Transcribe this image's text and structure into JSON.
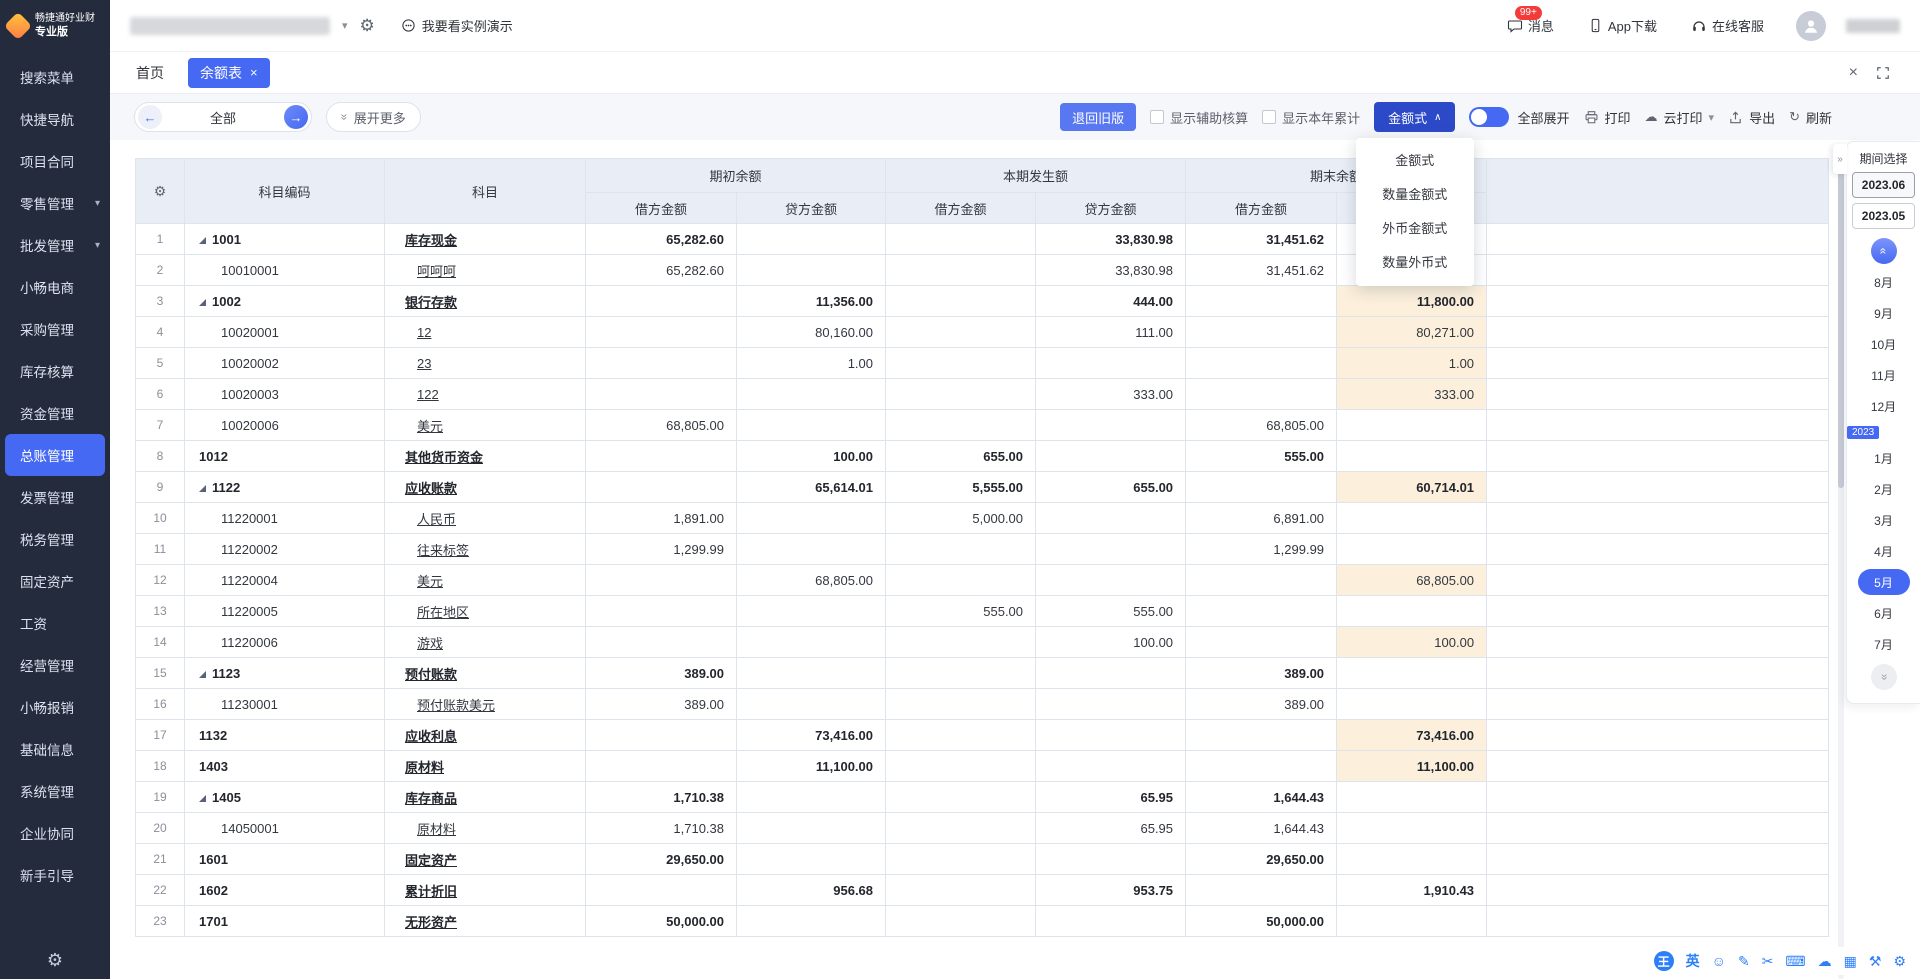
{
  "brand": {
    "line1": "畅捷通好业财",
    "line2": "专业版"
  },
  "topbar": {
    "demo_label": "我要看实例演示",
    "messages": "消息",
    "messages_badge": "99+",
    "app_download": "App下载",
    "support": "在线客服"
  },
  "sidebar": {
    "items": [
      {
        "label": "搜索菜单"
      },
      {
        "label": "快捷导航"
      },
      {
        "label": "项目合同"
      },
      {
        "label": "零售管理",
        "caret": true
      },
      {
        "label": "批发管理",
        "caret": true
      },
      {
        "label": "小畅电商"
      },
      {
        "label": "采购管理"
      },
      {
        "label": "库存核算"
      },
      {
        "label": "资金管理"
      },
      {
        "label": "总账管理",
        "active": true
      },
      {
        "label": "发票管理"
      },
      {
        "label": "税务管理"
      },
      {
        "label": "固定资产"
      },
      {
        "label": "工资"
      },
      {
        "label": "经营管理"
      },
      {
        "label": "小畅报销"
      },
      {
        "label": "基础信息"
      },
      {
        "label": "系统管理"
      },
      {
        "label": "企业协同"
      },
      {
        "label": "新手引导"
      }
    ]
  },
  "tabs": {
    "home": "首页",
    "active": "余额表"
  },
  "toolbar": {
    "scope": "全部",
    "expand_more": "展开更多",
    "back_old": "退回旧版",
    "chk_aux": "显示辅助核算",
    "chk_ytd": "显示本年累计",
    "format": "金额式",
    "expand_all": "全部展开",
    "print": "打印",
    "cloud_print": "云打印",
    "export": "导出",
    "refresh": "刷新"
  },
  "format_menu": {
    "options": [
      "金额式",
      "数量金额式",
      "外币金额式",
      "数量外币式"
    ]
  },
  "table": {
    "col_code": "科目编码",
    "col_subject": "科目",
    "groups": [
      "期初余额",
      "本期发生额",
      "期末余额"
    ],
    "sub_debit": "借方金额",
    "sub_credit": "贷方金额",
    "rows": [
      {
        "seq": 1,
        "code": "1001",
        "name": "库存现金",
        "level": 1,
        "expand": true,
        "bold": true,
        "cells": [
          "65,282.60",
          "",
          "",
          "33,830.98",
          "31,451.62",
          ""
        ],
        "hl": false
      },
      {
        "seq": 2,
        "code": "10010001",
        "name": "呵呵呵",
        "level": 2,
        "expand": false,
        "bold": false,
        "cells": [
          "65,282.60",
          "",
          "",
          "33,830.98",
          "31,451.62",
          ""
        ],
        "hl": false
      },
      {
        "seq": 3,
        "code": "1002",
        "name": "银行存款",
        "level": 1,
        "expand": true,
        "bold": true,
        "cells": [
          "",
          "11,356.00",
          "",
          "444.00",
          "",
          "11,800.00"
        ],
        "hl": true
      },
      {
        "seq": 4,
        "code": "10020001",
        "name": "12",
        "level": 2,
        "expand": false,
        "bold": false,
        "cells": [
          "",
          "80,160.00",
          "",
          "111.00",
          "",
          "80,271.00"
        ],
        "hl": true
      },
      {
        "seq": 5,
        "code": "10020002",
        "name": "23",
        "level": 2,
        "expand": false,
        "bold": false,
        "cells": [
          "",
          "1.00",
          "",
          "",
          "",
          "1.00"
        ],
        "hl": true
      },
      {
        "seq": 6,
        "code": "10020003",
        "name": "122",
        "level": 2,
        "expand": false,
        "bold": false,
        "cells": [
          "",
          "",
          "",
          "333.00",
          "",
          "333.00"
        ],
        "hl": true
      },
      {
        "seq": 7,
        "code": "10020006",
        "name": "美元",
        "level": 2,
        "expand": false,
        "bold": false,
        "cells": [
          "68,805.00",
          "",
          "",
          "",
          "68,805.00",
          ""
        ],
        "hl": false
      },
      {
        "seq": 8,
        "code": "1012",
        "name": "其他货币资金",
        "level": 1,
        "expand": false,
        "bold": true,
        "cells": [
          "",
          "100.00",
          "655.00",
          "",
          "555.00",
          ""
        ],
        "hl": false
      },
      {
        "seq": 9,
        "code": "1122",
        "name": "应收账款",
        "level": 1,
        "expand": true,
        "bold": true,
        "cells": [
          "",
          "65,614.01",
          "5,555.00",
          "655.00",
          "",
          "60,714.01"
        ],
        "hl": true
      },
      {
        "seq": 10,
        "code": "11220001",
        "name": "人民币",
        "level": 2,
        "expand": false,
        "bold": false,
        "cells": [
          "1,891.00",
          "",
          "5,000.00",
          "",
          "6,891.00",
          ""
        ],
        "hl": false
      },
      {
        "seq": 11,
        "code": "11220002",
        "name": "往来标签",
        "level": 2,
        "expand": false,
        "bold": false,
        "cells": [
          "1,299.99",
          "",
          "",
          "",
          "1,299.99",
          ""
        ],
        "hl": false
      },
      {
        "seq": 12,
        "code": "11220004",
        "name": "美元",
        "level": 2,
        "expand": false,
        "bold": false,
        "cells": [
          "",
          "68,805.00",
          "",
          "",
          "",
          "68,805.00"
        ],
        "hl": true
      },
      {
        "seq": 13,
        "code": "11220005",
        "name": "所在地区",
        "level": 2,
        "expand": false,
        "bold": false,
        "cells": [
          "",
          "",
          "555.00",
          "555.00",
          "",
          ""
        ],
        "hl": false
      },
      {
        "seq": 14,
        "code": "11220006",
        "name": "游戏",
        "level": 2,
        "expand": false,
        "bold": false,
        "cells": [
          "",
          "",
          "",
          "100.00",
          "",
          "100.00"
        ],
        "hl": true
      },
      {
        "seq": 15,
        "code": "1123",
        "name": "预付账款",
        "level": 1,
        "expand": true,
        "bold": true,
        "cells": [
          "389.00",
          "",
          "",
          "",
          "389.00",
          ""
        ],
        "hl": false
      },
      {
        "seq": 16,
        "code": "11230001",
        "name": "预付账款美元",
        "level": 2,
        "expand": false,
        "bold": false,
        "cells": [
          "389.00",
          "",
          "",
          "",
          "389.00",
          ""
        ],
        "hl": false
      },
      {
        "seq": 17,
        "code": "1132",
        "name": "应收利息",
        "level": 1,
        "expand": false,
        "bold": true,
        "cells": [
          "",
          "73,416.00",
          "",
          "",
          "",
          "73,416.00"
        ],
        "hl": true
      },
      {
        "seq": 18,
        "code": "1403",
        "name": "原材料",
        "level": 1,
        "expand": false,
        "bold": true,
        "cells": [
          "",
          "11,100.00",
          "",
          "",
          "",
          "11,100.00"
        ],
        "hl": true
      },
      {
        "seq": 19,
        "code": "1405",
        "name": "库存商品",
        "level": 1,
        "expand": true,
        "bold": true,
        "cells": [
          "1,710.38",
          "",
          "",
          "65.95",
          "1,644.43",
          ""
        ],
        "hl": false
      },
      {
        "seq": 20,
        "code": "14050001",
        "name": "原材料",
        "level": 2,
        "expand": false,
        "bold": false,
        "cells": [
          "1,710.38",
          "",
          "",
          "65.95",
          "1,644.43",
          ""
        ],
        "hl": false
      },
      {
        "seq": 21,
        "code": "1601",
        "name": "固定资产",
        "level": 1,
        "expand": false,
        "bold": true,
        "cells": [
          "29,650.00",
          "",
          "",
          "",
          "29,650.00",
          ""
        ],
        "hl": false
      },
      {
        "seq": 22,
        "code": "1602",
        "name": "累计折旧",
        "level": 1,
        "expand": false,
        "bold": true,
        "cells": [
          "",
          "956.68",
          "",
          "953.75",
          "",
          "1,910.43"
        ],
        "hl": false
      },
      {
        "seq": 23,
        "code": "1701",
        "name": "无形资产",
        "level": 1,
        "expand": false,
        "bold": true,
        "cells": [
          "50,000.00",
          "",
          "",
          "",
          "50,000.00",
          ""
        ],
        "hl": false
      }
    ]
  },
  "period_panel": {
    "title": "期间选择",
    "range": [
      "2023.06",
      "2023.05"
    ],
    "year_badge": "2023",
    "months": [
      "8月",
      "9月",
      "10月",
      "11月",
      "12月",
      "1月",
      "2月",
      "3月",
      "4月",
      "5月",
      "6月",
      "7月"
    ],
    "selected_month": "5月",
    "year_badge_before_index": 5
  },
  "ime": {
    "logo": "王",
    "lang": "英",
    "icons": [
      {
        "name": "emoji-icon",
        "glyph": "☺"
      },
      {
        "name": "pen-icon",
        "glyph": "✎"
      },
      {
        "name": "scissors-icon",
        "glyph": "✂"
      },
      {
        "name": "keyboard-icon",
        "glyph": "⌨"
      },
      {
        "name": "cloud-icon",
        "glyph": "☁"
      },
      {
        "name": "grid-icon",
        "glyph": "▦"
      },
      {
        "name": "toolbox-icon",
        "glyph": "⚒"
      },
      {
        "name": "gear-icon",
        "glyph": "⚙"
      }
    ]
  },
  "icons": {
    "chevron_down": "▾",
    "gear": "⚙",
    "close": "×",
    "caret_up": "∧",
    "arrow_left": "←",
    "arrow_right": "→",
    "double_chevron_left": "«",
    "double_chevron_right": "»",
    "refresh": "↻",
    "cloud": "☁"
  },
  "colors": {
    "accent": "#4569f2",
    "accent_dark": "#2c49c8",
    "highlight": "#fcf0dc",
    "badge_red": "#f43b3b",
    "sidebar_bg": "#232b3c"
  }
}
